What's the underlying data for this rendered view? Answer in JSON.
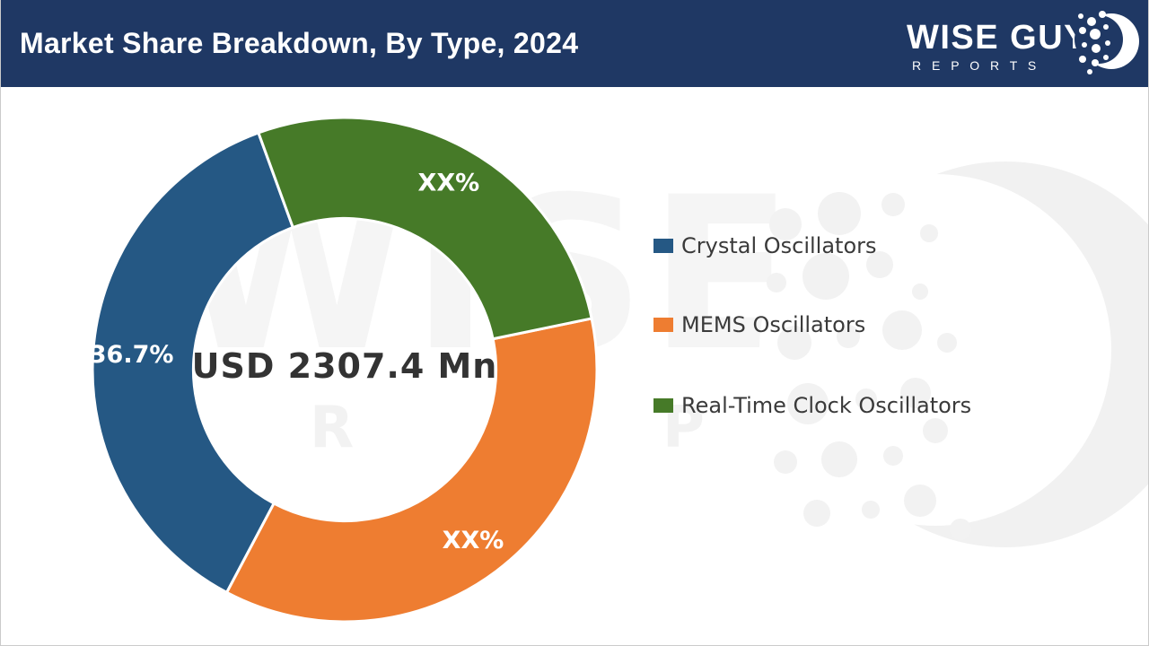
{
  "header": {
    "title": "Market Share Breakdown, By Type, 2024"
  },
  "brand": {
    "line1": "WISE GUY",
    "line2": "R E P O R T S"
  },
  "watermark": {
    "line1": "WISE GUY",
    "line2": "REPORTS"
  },
  "chart_data": {
    "type": "pie",
    "subtype": "donut",
    "title": "Market Share Breakdown, By Type, 2024",
    "center_label": "USD 2307.4 Mn",
    "legend_position": "right",
    "donut_hole_ratio": 0.6,
    "start_angle_deg": 110,
    "direction": "counterclockwise",
    "segments": [
      {
        "name": "Crystal Oscillators",
        "slice_label": "36.7%",
        "arc_pct": 36.7,
        "color": "#255884"
      },
      {
        "name": "MEMS Oscillators",
        "slice_label": "XX%",
        "arc_pct": 36.0,
        "color": "#ee7d31"
      },
      {
        "name": "Real-Time Clock Oscillators",
        "slice_label": "XX%",
        "arc_pct": 27.3,
        "color": "#467a28"
      }
    ]
  }
}
